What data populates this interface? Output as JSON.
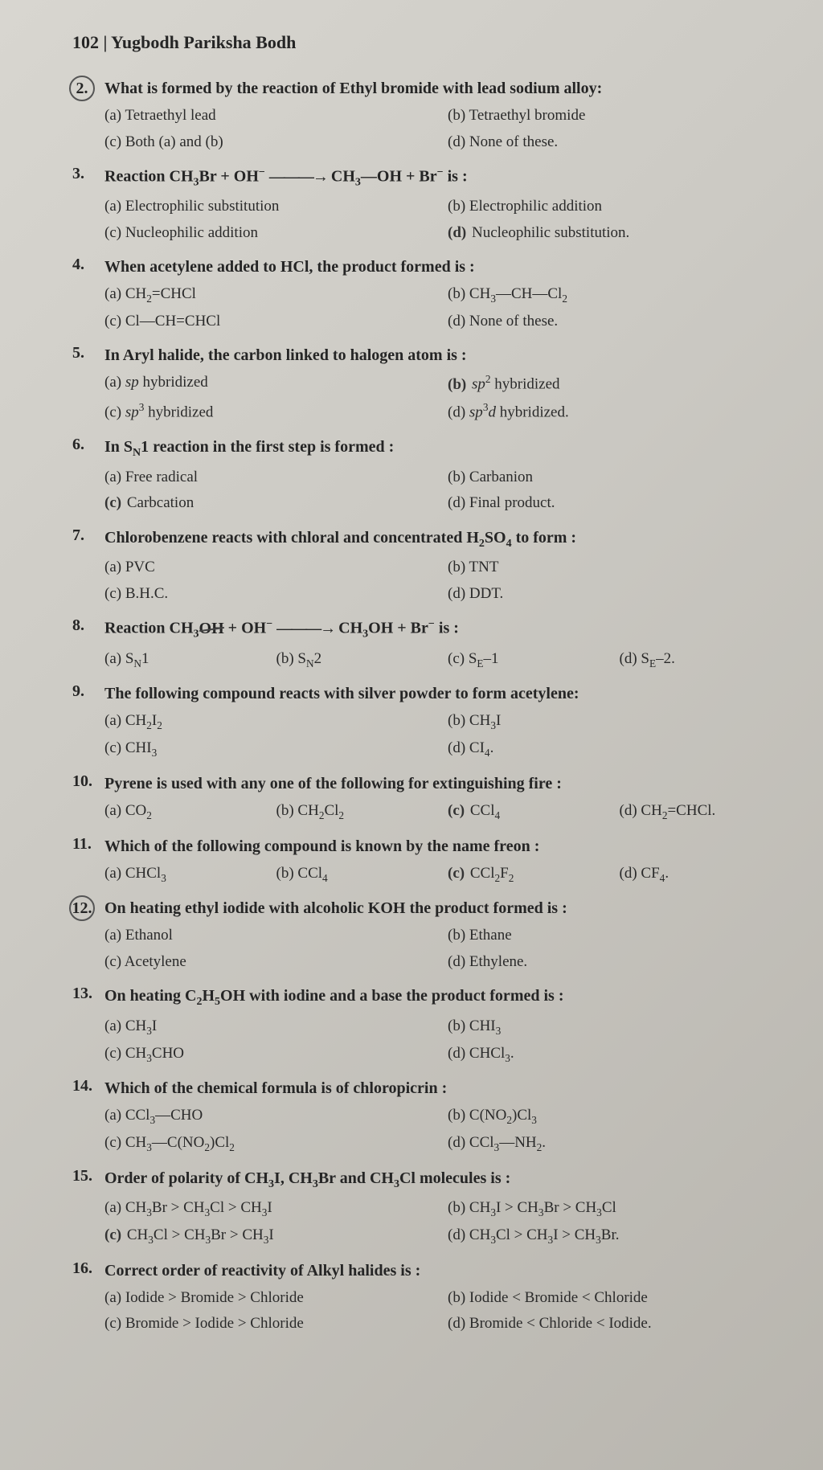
{
  "header": "102 | Yugbodh Pariksha Bodh",
  "questions": [
    {
      "num": "2.",
      "circled": true,
      "text": "What is formed by the reaction of Ethyl bromide with lead sodium alloy:",
      "layout": "two-col",
      "opts": {
        "a": "(a) Tetraethyl lead",
        "b": "(b) Tetraethyl bromide",
        "c": "(c) Both (a) and (b)",
        "d": "(d) None of these."
      }
    },
    {
      "num": "3.",
      "text_html": "Reaction CH<sub>3</sub>Br + OH<sup>−</sup> <span class='arrow'>———→</span> CH<sub>3</sub>—OH + Br<sup>−</sup> is :",
      "layout": "two-col",
      "opts": {
        "a": "(a) Electrophilic substitution",
        "b": "(b) Electrophilic addition",
        "c": "(c) Nucleophilic addition",
        "d_html": "<span class='tick'>(d)</span> Nucleophilic substitution."
      }
    },
    {
      "num": "4.",
      "text": "When acetylene added to HCl, the product formed is :",
      "layout": "two-col",
      "opts": {
        "a_html": "(a) CH<sub>2</sub>=CHCl",
        "b_html": "(b) CH<sub>3</sub>—CH—Cl<sub>2</sub>",
        "c_html": "(c) Cl—CH=CHCl",
        "d": "(d) None of these."
      }
    },
    {
      "num": "5.",
      "text": "In Aryl halide, the carbon linked to halogen atom is :",
      "layout": "two-col",
      "opts": {
        "a_html": "(a) <i>sp</i> hybridized",
        "b_html": "<span class='tick'>(b)</span> <i>sp</i><sup>2</sup> hybridized",
        "c_html": "(c) <i>sp</i><sup>3</sup> hybridized",
        "d_html": "(d) <i>sp</i><sup>3</sup><i>d</i> hybridized."
      }
    },
    {
      "num": "6.",
      "text_html": "In S<sub>N</sub>1 reaction in the first step is formed :",
      "layout": "two-col",
      "opts": {
        "a": "(a) Free radical",
        "b": "(b) Carbanion",
        "c_html": "<span class='tick'>(c)</span> Carbcation",
        "d": "(d) Final product."
      }
    },
    {
      "num": "7.",
      "text_html": "Chlorobenzene reacts with chloral and concentrated H<sub>2</sub>SO<sub>4</sub> to form :",
      "layout": "two-col",
      "opts": {
        "a": "(a) PVC",
        "b": "(b) TNT",
        "c": "(c) B.H.C.",
        "d": "(d) DDT."
      }
    },
    {
      "num": "8.",
      "text_html": "Reaction CH<sub>3</sub><span class='struck'>OH</span> + OH<sup>−</sup> <span class='arrow'>———→</span> CH<sub>3</sub>OH + Br<sup>−</sup> is :",
      "layout": "four-col",
      "opts": {
        "a_html": "(a) S<sub>N</sub>1",
        "b_html": "(b) S<sub>N</sub>2",
        "c_html": "(c) S<sub>E</sub>–1",
        "d_html": "(d) S<sub>E</sub>–2."
      }
    },
    {
      "num": "9.",
      "text": "The following compound reacts with silver powder to form acetylene:",
      "layout": "two-col",
      "opts": {
        "a_html": "(a) CH<sub>2</sub>I<sub>2</sub>",
        "b_html": "(b) CH<sub>3</sub>I",
        "c_html": "(c) CHI<sub>3</sub>",
        "d_html": "(d) CI<sub>4</sub>."
      }
    },
    {
      "num": "10.",
      "text": "Pyrene is used with any one of the following for extinguishing fire :",
      "layout": "four-col",
      "opts": {
        "a_html": "(a) CO<sub>2</sub>",
        "b_html": "(b) CH<sub>2</sub>Cl<sub>2</sub>",
        "c_html": "<span class='tick'>(c)</span> CCl<sub>4</sub>",
        "d_html": "(d) CH<sub>2</sub>=CHCl."
      }
    },
    {
      "num": "11.",
      "text": "Which of the following compound is known by the name freon :",
      "layout": "four-col",
      "opts": {
        "a_html": "(a) CHCl<sub>3</sub>",
        "b_html": "(b) CCl<sub>4</sub>",
        "c_html": "<span class='tick'>(c)</span> CCl<sub>2</sub>F<sub>2</sub>",
        "d_html": "(d) CF<sub>4</sub>."
      }
    },
    {
      "num": "12.",
      "circled": true,
      "text": "On heating ethyl iodide with alcoholic KOH the product formed is :",
      "layout": "two-col",
      "opts": {
        "a": "(a) Ethanol",
        "b": "(b) Ethane",
        "c": "(c) Acetylene",
        "d": "(d) Ethylene."
      }
    },
    {
      "num": "13.",
      "text_html": "On heating C<sub>2</sub>H<sub>5</sub>OH with iodine and a base the product formed is :",
      "layout": "two-col",
      "opts": {
        "a_html": "(a) CH<sub>3</sub>I",
        "b_html": "(b) CHI<sub>3</sub>",
        "c_html": "(c) CH<sub>3</sub>CHO",
        "d_html": "(d) CHCl<sub>3</sub>."
      }
    },
    {
      "num": "14.",
      "text": "Which of the chemical formula is of chloropicrin :",
      "layout": "two-col",
      "opts": {
        "a_html": "(a) CCl<sub>3</sub>—CHO",
        "b_html": "(b) C(NO<sub>2</sub>)Cl<sub>3</sub>",
        "c_html": "(c) CH<sub>3</sub>—C(NO<sub>2</sub>)Cl<sub>2</sub>",
        "d_html": "(d) CCl<sub>3</sub>—NH<sub>2</sub>."
      }
    },
    {
      "num": "15.",
      "text_html": "Order of polarity of CH<sub>3</sub>I, CH<sub>3</sub>Br and CH<sub>3</sub>Cl molecules is :",
      "layout": "two-col",
      "opts": {
        "a_html": "(a) CH<sub>3</sub>Br &gt; CH<sub>3</sub>Cl &gt; CH<sub>3</sub>I",
        "b_html": "(b) CH<sub>3</sub>I &gt; CH<sub>3</sub>Br &gt; CH<sub>3</sub>Cl",
        "c_html": "<span class='tick'>(c)</span> CH<sub>3</sub>Cl &gt; CH<sub>3</sub>Br &gt; CH<sub>3</sub>I",
        "d_html": "(d) CH<sub>3</sub>Cl &gt; CH<sub>3</sub>I &gt; CH<sub>3</sub>Br."
      }
    },
    {
      "num": "16.",
      "text": "Correct order of reactivity of Alkyl halides is :",
      "layout": "two-col",
      "opts": {
        "a": "(a) Iodide > Bromide > Chloride",
        "b": "(b) Iodide < Bromide < Chloride",
        "c": "(c) Bromide > Iodide > Chloride",
        "d": "(d) Bromide < Chloride < Iodide."
      }
    }
  ]
}
